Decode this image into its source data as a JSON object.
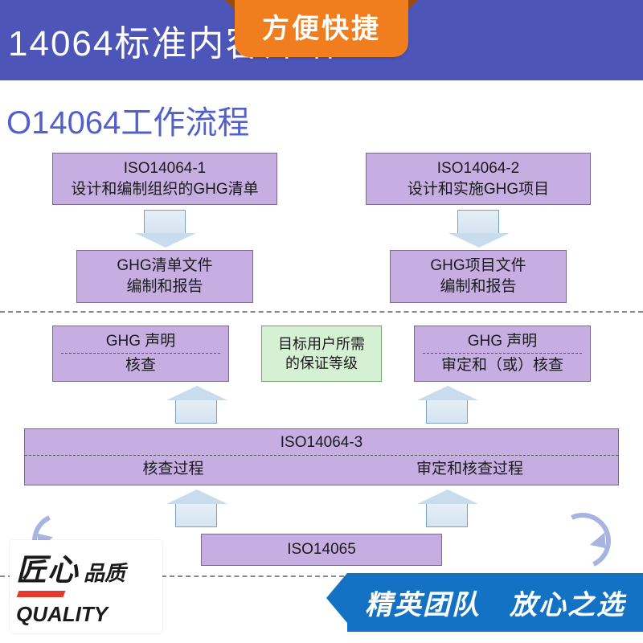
{
  "badge_top": "方便快捷",
  "title": "14064标准内容介绍",
  "subtitle": "O14064工作流程",
  "left": {
    "step1_line1": "ISO14064-1",
    "step1_line2": "设计和编制组织的GHG清单",
    "step2_line1": "GHG清单文件",
    "step2_line2": "编制和报告",
    "decl_line1": "GHG 声明",
    "decl_line2": "核查"
  },
  "right": {
    "step1_line1": "ISO14064-2",
    "step1_line2": "设计和实施GHG项目",
    "step2_line1": "GHG项目文件",
    "step2_line2": "编制和报告",
    "decl_line1": "GHG 声明",
    "decl_line2": "审定和（或）核查"
  },
  "center_green_line1": "目标用户所需",
  "center_green_line2": "的保证等级",
  "iso3_header": "ISO14064-3",
  "iso3_left": "核查过程",
  "iso3_right": "审定和核查过程",
  "iso65": "ISO14065",
  "stamp_big": "匠心",
  "stamp_small": "品质",
  "banner_text": "精英团队　放心之选",
  "colors": {
    "title_bg": "#4d56b8",
    "subtitle": "#5261c9",
    "box_bg": "#c6aee2",
    "box_border": "#7a6a8f",
    "green_bg": "#d5f0d2",
    "green_border": "#6fa86f",
    "arrow_fill": "#c8dcee",
    "arrow_border": "#7aa0c4",
    "swirl": "#a7b4e0",
    "badge_bg": "#f07d1e",
    "stamp_accent": "#e23b2e",
    "banner_bg": "#1472c5"
  }
}
